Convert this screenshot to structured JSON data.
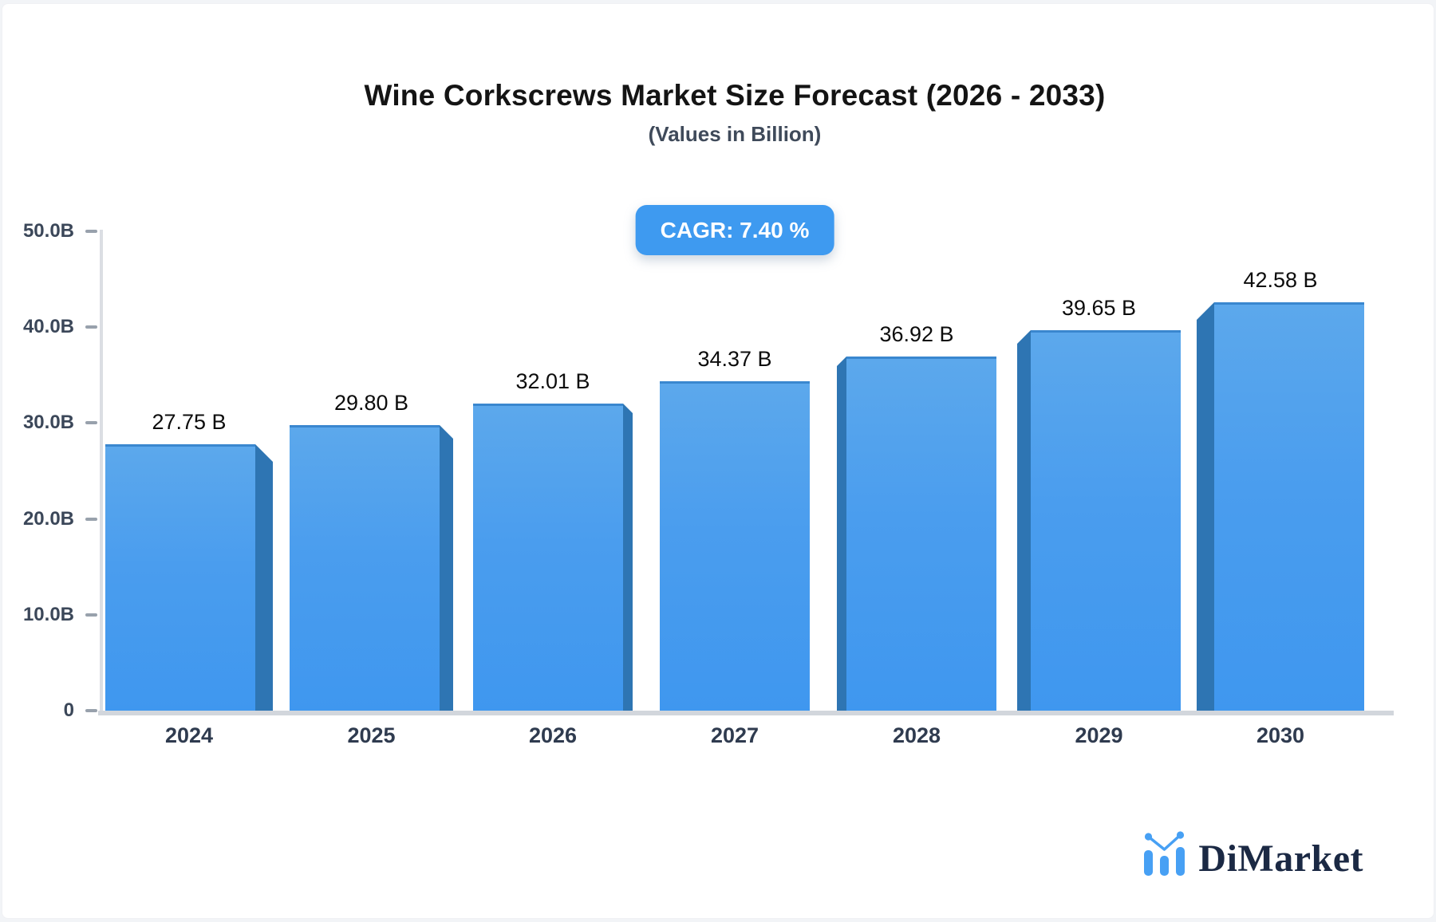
{
  "header": {
    "title": "Wine Corkscrews Market Size Forecast (2026 - 2033)",
    "subtitle": "(Values in Billion)",
    "cagr_label": "CAGR: 7.40 %"
  },
  "chart_data": {
    "type": "bar",
    "title": "Wine Corkscrews Market Size Forecast (2026 - 2033)",
    "subtitle": "(Values in Billion)",
    "categories": [
      "2024",
      "2025",
      "2026",
      "2027",
      "2028",
      "2029",
      "2030"
    ],
    "values": [
      27.75,
      29.8,
      32.01,
      34.37,
      36.92,
      39.65,
      42.58
    ],
    "value_labels": [
      "27.75 B",
      "29.80 B",
      "32.01 B",
      "34.37 B",
      "36.92 B",
      "39.65 B",
      "42.58 B"
    ],
    "yticks_top_down": [
      "50.0B",
      "40.0B",
      "30.0B",
      "20.0B",
      "10.0B",
      "0"
    ],
    "ylim": [
      0,
      50
    ],
    "xlabel": "",
    "ylabel": "",
    "grid": "off",
    "legend": "none",
    "annotation_cagr": "7.40 %",
    "bar_color": "#3f97ef",
    "bar_side_color": "#2e75b3",
    "style": "3d-beveled-bars, perspective center"
  },
  "colors": {
    "accent": "#3e9af0",
    "title": "#141414",
    "axis_text": "#3b4759",
    "baseline": "#d2d6dc"
  },
  "footer": {
    "brand": "DiMarket"
  }
}
